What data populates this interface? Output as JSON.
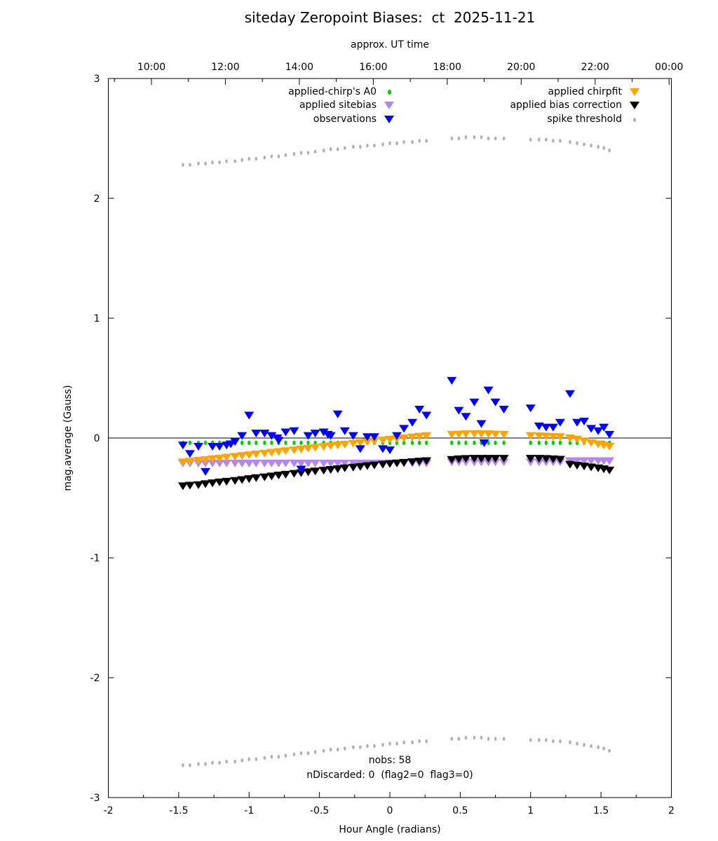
{
  "chart_data": {
    "type": "scatter",
    "title": "siteday Zeropoint Biases:  ct  2025-11-21",
    "annotations": {
      "nobs": "nobs: 58",
      "ndiscarded": "nDiscarded: 0  (flag2=0  flag3=0)"
    },
    "ut_axis": {
      "label": "approx. UT time",
      "major_ticks": [
        {
          "label": "10:00",
          "hour": 10
        },
        {
          "label": "12:00",
          "hour": 12
        },
        {
          "label": "14:00",
          "hour": 14
        },
        {
          "label": "16:00",
          "hour": 16
        },
        {
          "label": "18:00",
          "hour": 18
        },
        {
          "label": "20:00",
          "hour": 20
        },
        {
          "label": "22:00",
          "hour": 22
        },
        {
          "label": "00:00",
          "hour": 24
        }
      ],
      "minor_hours": [
        9,
        11,
        13,
        15,
        17,
        19,
        21,
        23
      ]
    },
    "x_axis": {
      "label": "Hour Angle (radians)",
      "range": [
        -2,
        2
      ],
      "major_ticks": [
        -2,
        -1.5,
        -1,
        -0.5,
        0,
        0.5,
        1,
        1.5,
        2
      ],
      "major_labels": [
        "-2",
        "-1.5",
        "-1",
        "-0.5",
        "0",
        "0.5",
        "1",
        "1.5",
        "2"
      ],
      "minor_ticks": [
        -1.75,
        -1.25,
        -0.75,
        -0.25,
        0.25,
        0.75,
        1.25,
        1.75
      ]
    },
    "y_axis": {
      "label": "mag.average (Gauss)",
      "range": [
        -3,
        3
      ],
      "major_ticks": [
        3,
        2,
        1,
        0,
        -1,
        -2,
        -3
      ],
      "major_labels": [
        "3",
        "2",
        "1",
        "0",
        "-1",
        "-2",
        "-3"
      ]
    },
    "zero_line": true,
    "grid": false,
    "x": [
      -1.47,
      -1.42,
      -1.36,
      -1.31,
      -1.26,
      -1.21,
      -1.16,
      -1.1,
      -1.05,
      -1.0,
      -0.95,
      -0.89,
      -0.84,
      -0.79,
      -0.74,
      -0.68,
      -0.63,
      -0.58,
      -0.53,
      -0.47,
      -0.42,
      -0.37,
      -0.32,
      -0.26,
      -0.21,
      -0.16,
      -0.11,
      -0.05,
      0.0,
      0.05,
      0.1,
      0.16,
      0.21,
      0.26,
      0.44,
      0.49,
      0.54,
      0.6,
      0.65,
      0.7,
      0.75,
      0.81,
      1.0,
      1.06,
      1.11,
      1.16,
      1.21,
      1.28,
      1.33,
      1.38,
      1.43,
      1.48,
      1.52,
      1.56
    ],
    "series": {
      "a0": {
        "name": "applied-chirp's A0",
        "color": "#00cc00",
        "marker": "dot",
        "y": [
          -0.04,
          -0.04,
          -0.04,
          -0.04,
          -0.04,
          -0.04,
          -0.04,
          -0.04,
          -0.04,
          -0.04,
          -0.04,
          -0.04,
          -0.04,
          -0.04,
          -0.04,
          -0.04,
          -0.04,
          -0.04,
          -0.04,
          -0.04,
          -0.04,
          -0.04,
          -0.04,
          -0.04,
          -0.04,
          -0.04,
          -0.04,
          -0.04,
          -0.04,
          -0.04,
          -0.04,
          -0.04,
          -0.04,
          -0.04,
          -0.04,
          -0.04,
          -0.04,
          -0.04,
          -0.04,
          -0.04,
          -0.04,
          -0.04,
          -0.04,
          -0.04,
          -0.04,
          -0.04,
          -0.04,
          -0.04,
          -0.04,
          -0.04,
          -0.04,
          -0.04,
          -0.04,
          -0.04
        ]
      },
      "sitebias": {
        "name": "applied sitebias",
        "color": "#b388ea",
        "marker": "triangle-down",
        "y": [
          -0.21,
          -0.21,
          -0.21,
          -0.21,
          -0.21,
          -0.21,
          -0.21,
          -0.21,
          -0.21,
          -0.21,
          -0.21,
          -0.21,
          -0.21,
          -0.21,
          -0.21,
          -0.21,
          -0.21,
          -0.21,
          -0.21,
          -0.21,
          -0.21,
          -0.21,
          -0.21,
          -0.21,
          -0.21,
          -0.21,
          -0.21,
          -0.21,
          -0.21,
          -0.21,
          -0.21,
          -0.21,
          -0.21,
          -0.21,
          -0.2,
          -0.2,
          -0.2,
          -0.2,
          -0.2,
          -0.2,
          -0.2,
          -0.2,
          -0.2,
          -0.2,
          -0.2,
          -0.2,
          -0.2,
          -0.19,
          -0.19,
          -0.19,
          -0.19,
          -0.19,
          -0.19,
          -0.19
        ]
      },
      "chirpfit": {
        "name": "applied chirpfit",
        "color": "#ffa500",
        "marker": "triangle-down",
        "y": [
          -0.2,
          -0.194,
          -0.187,
          -0.181,
          -0.174,
          -0.168,
          -0.161,
          -0.154,
          -0.147,
          -0.141,
          -0.134,
          -0.127,
          -0.12,
          -0.114,
          -0.107,
          -0.1,
          -0.093,
          -0.086,
          -0.08,
          -0.072,
          -0.066,
          -0.059,
          -0.053,
          -0.045,
          -0.039,
          -0.032,
          -0.026,
          -0.018,
          -0.012,
          -0.006,
          0.0,
          0.008,
          0.014,
          0.02,
          0.03,
          0.032,
          0.035,
          0.035,
          0.035,
          0.035,
          0.032,
          0.03,
          0.02,
          0.018,
          0.015,
          0.012,
          0.01,
          0.0,
          -0.01,
          -0.025,
          -0.04,
          -0.05,
          -0.06,
          -0.07
        ]
      },
      "bias": {
        "name": "applied bias correction",
        "color": "#000000",
        "marker": "triangle-down",
        "y": [
          -0.4,
          -0.395,
          -0.39,
          -0.382,
          -0.375,
          -0.368,
          -0.362,
          -0.355,
          -0.348,
          -0.34,
          -0.332,
          -0.325,
          -0.318,
          -0.31,
          -0.303,
          -0.296,
          -0.29,
          -0.283,
          -0.276,
          -0.27,
          -0.263,
          -0.257,
          -0.25,
          -0.244,
          -0.238,
          -0.232,
          -0.226,
          -0.22,
          -0.214,
          -0.209,
          -0.204,
          -0.199,
          -0.194,
          -0.19,
          -0.18,
          -0.175,
          -0.172,
          -0.17,
          -0.17,
          -0.17,
          -0.17,
          -0.17,
          -0.17,
          -0.17,
          -0.172,
          -0.175,
          -0.178,
          -0.22,
          -0.228,
          -0.235,
          -0.243,
          -0.25,
          -0.258,
          -0.268
        ]
      },
      "obs": {
        "name": "observations",
        "color": "#0000ee",
        "marker": "triangle-down",
        "points": [
          [
            -1.47,
            -0.06
          ],
          [
            -1.42,
            -0.13
          ],
          [
            -1.36,
            -0.07
          ],
          [
            -1.31,
            -0.28
          ],
          [
            -1.26,
            -0.07
          ],
          [
            -1.21,
            -0.07
          ],
          [
            -1.16,
            -0.06
          ],
          [
            -1.13,
            -0.05
          ],
          [
            -1.1,
            -0.03
          ],
          [
            -1.05,
            0.02
          ],
          [
            -1.0,
            0.19
          ],
          [
            -0.95,
            0.04
          ],
          [
            -0.89,
            0.04
          ],
          [
            -0.84,
            0.02
          ],
          [
            -0.8,
            0.0
          ],
          [
            -0.79,
            -0.02
          ],
          [
            -0.74,
            0.05
          ],
          [
            -0.68,
            0.06
          ],
          [
            -0.63,
            -0.26
          ],
          [
            -0.58,
            0.02
          ],
          [
            -0.53,
            0.04
          ],
          [
            -0.47,
            0.05
          ],
          [
            -0.44,
            0.03
          ],
          [
            -0.42,
            0.02
          ],
          [
            -0.37,
            0.2
          ],
          [
            -0.32,
            0.06
          ],
          [
            -0.26,
            0.02
          ],
          [
            -0.21,
            -0.09
          ],
          [
            -0.16,
            0.01
          ],
          [
            -0.11,
            0.01
          ],
          [
            -0.05,
            -0.09
          ],
          [
            0.0,
            -0.1
          ],
          [
            0.05,
            0.02
          ],
          [
            0.1,
            0.08
          ],
          [
            0.16,
            0.13
          ],
          [
            0.21,
            0.24
          ],
          [
            0.26,
            0.19
          ],
          [
            0.44,
            0.48
          ],
          [
            0.49,
            0.23
          ],
          [
            0.54,
            0.18
          ],
          [
            0.6,
            0.3
          ],
          [
            0.65,
            0.12
          ],
          [
            0.67,
            -0.04
          ],
          [
            0.7,
            0.4
          ],
          [
            0.75,
            0.3
          ],
          [
            0.81,
            0.24
          ],
          [
            1.0,
            0.25
          ],
          [
            1.06,
            0.1
          ],
          [
            1.11,
            0.09
          ],
          [
            1.16,
            0.09
          ],
          [
            1.21,
            0.13
          ],
          [
            1.28,
            0.37
          ],
          [
            1.33,
            0.13
          ],
          [
            1.38,
            0.14
          ],
          [
            1.43,
            0.08
          ],
          [
            1.48,
            0.06
          ],
          [
            1.52,
            0.09
          ],
          [
            1.56,
            0.03
          ]
        ]
      },
      "spike": {
        "name": "spike threshold",
        "color": "#b0b0b0",
        "marker": "small-dot",
        "y_top": [
          2.28,
          2.28,
          2.29,
          2.29,
          2.3,
          2.3,
          2.31,
          2.31,
          2.32,
          2.33,
          2.33,
          2.34,
          2.35,
          2.35,
          2.36,
          2.37,
          2.38,
          2.38,
          2.39,
          2.4,
          2.41,
          2.41,
          2.42,
          2.43,
          2.43,
          2.44,
          2.44,
          2.45,
          2.46,
          2.46,
          2.47,
          2.47,
          2.48,
          2.48,
          2.5,
          2.5,
          2.51,
          2.51,
          2.51,
          2.5,
          2.5,
          2.5,
          2.49,
          2.49,
          2.49,
          2.48,
          2.48,
          2.47,
          2.46,
          2.45,
          2.44,
          2.43,
          2.42,
          2.4
        ],
        "y_bottom": [
          -2.73,
          -2.73,
          -2.72,
          -2.72,
          -2.71,
          -2.71,
          -2.7,
          -2.7,
          -2.69,
          -2.68,
          -2.68,
          -2.67,
          -2.66,
          -2.66,
          -2.65,
          -2.64,
          -2.63,
          -2.63,
          -2.62,
          -2.61,
          -2.6,
          -2.6,
          -2.59,
          -2.58,
          -2.58,
          -2.57,
          -2.57,
          -2.56,
          -2.55,
          -2.55,
          -2.54,
          -2.54,
          -2.53,
          -2.53,
          -2.51,
          -2.51,
          -2.5,
          -2.5,
          -2.5,
          -2.51,
          -2.51,
          -2.51,
          -2.52,
          -2.52,
          -2.52,
          -2.53,
          -2.53,
          -2.54,
          -2.55,
          -2.56,
          -2.57,
          -2.58,
          -2.59,
          -2.61
        ]
      }
    },
    "draw_order": [
      "spike",
      "a0",
      "sitebias",
      "chirpfit",
      "bias",
      "obs"
    ],
    "legend": {
      "left_column": [
        "a0",
        "sitebias",
        "obs"
      ],
      "right_column": [
        "chirpfit",
        "bias",
        "spike"
      ]
    },
    "colors": {
      "axis": "#000000",
      "background": "#ffffff"
    }
  }
}
